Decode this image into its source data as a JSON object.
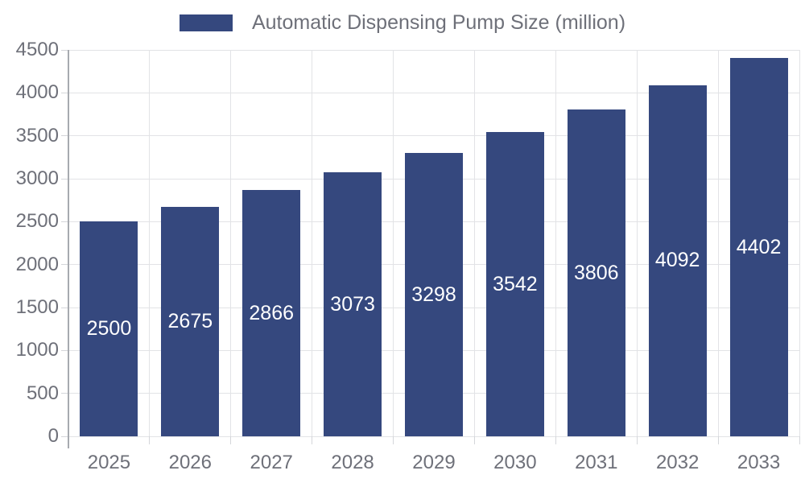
{
  "legend": {
    "label": "Automatic Dispensing Pump Size (million)"
  },
  "chart_data": {
    "type": "bar",
    "title": "Automatic Dispensing Pump Size (million)",
    "categories": [
      "2025",
      "2026",
      "2027",
      "2028",
      "2029",
      "2030",
      "2031",
      "2032",
      "2033"
    ],
    "values": [
      2500,
      2675,
      2866,
      3073,
      3298,
      3542,
      3806,
      4092,
      4402
    ],
    "xlabel": "",
    "ylabel": "",
    "ylim": [
      0,
      4500
    ],
    "ytick_step": 500,
    "grid": true,
    "legend_position": "top"
  },
  "colors": {
    "bar": "#35487e",
    "bar_label": "#ffffff",
    "axis_text": "#6e7079",
    "gridline": "#e2e3e6",
    "axis_line": "#a7aab0",
    "tick": "#d4d6da",
    "background": "#ffffff"
  }
}
